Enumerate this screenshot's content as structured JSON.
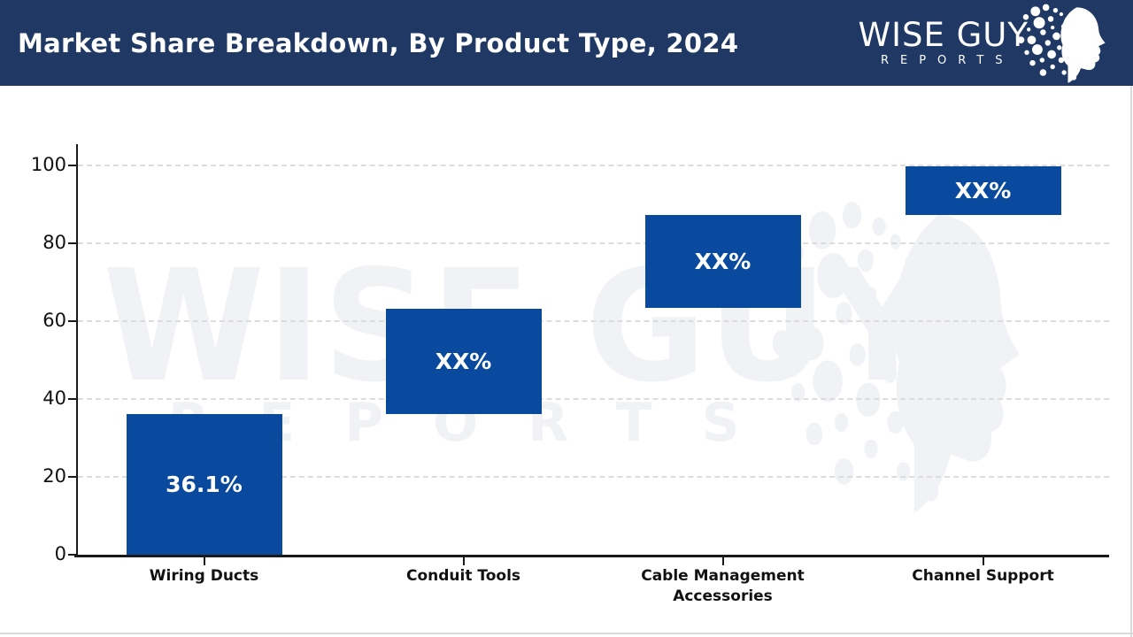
{
  "header": {
    "title": "Market Share Breakdown, By Product Type, 2024",
    "logo": {
      "name_top": "WISE GUY",
      "name_bottom": "REPORTS",
      "icon": "dotted-head-profile"
    }
  },
  "watermark": {
    "line1": "WISE GUY",
    "line2": "REPORTS",
    "icon": "dotted-head-profile"
  },
  "chart_data": {
    "type": "bar",
    "subtype": "floating-waterfall",
    "title": "Market Share Breakdown, By Product Type, 2024",
    "categories": [
      "Wiring Ducts",
      "Conduit Tools",
      "Cable Management Accessories",
      "Channel Support"
    ],
    "segments": [
      {
        "category": "Wiring Ducts",
        "start": 0,
        "end": 36.1,
        "label": "36.1%"
      },
      {
        "category": "Conduit Tools",
        "start": 36.1,
        "end": 63.2,
        "label": "XX%"
      },
      {
        "category": "Cable Management Accessories",
        "start": 63.4,
        "end": 87.3,
        "label": "XX%"
      },
      {
        "category": "Channel Support",
        "start": 87.3,
        "end": 99.8,
        "label": "XX%"
      }
    ],
    "yticks": [
      0,
      20,
      40,
      60,
      80,
      100
    ],
    "ylim": [
      0,
      105.5
    ],
    "xlabel": "",
    "ylabel": "",
    "grid": "horizontal-dashed",
    "legend": "none",
    "bar_color": "#0a4a9e",
    "bar_label_color": "#ffffff",
    "axis_color": "#1a1a1a",
    "grid_color": "#dcdcdc"
  },
  "colors": {
    "header_background": "#1f3864",
    "canvas_background": "#ffffff",
    "watermark": "#f1f2f6",
    "edge_line": "#d9d9d9"
  }
}
